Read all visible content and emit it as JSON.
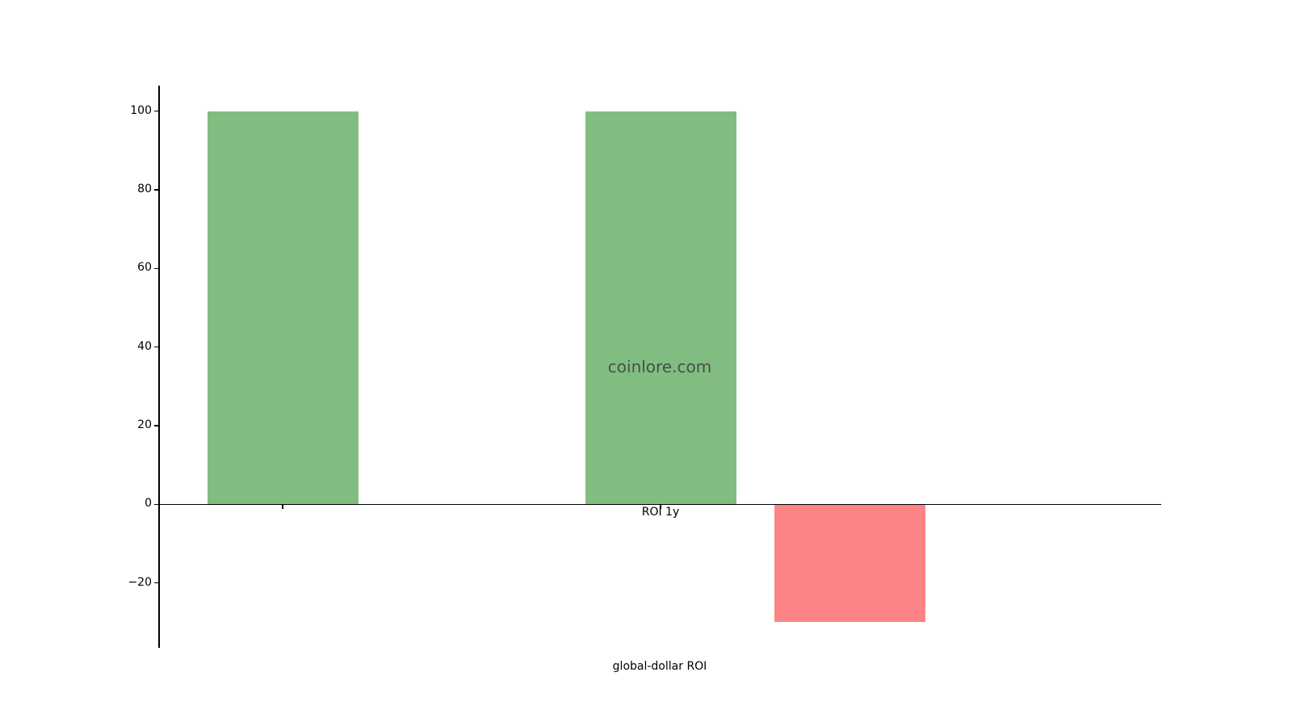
{
  "chart_data": {
    "type": "bar",
    "title": "",
    "xlabel": "global-dollar ROI",
    "ylabel": "",
    "watermark": "coinlore.com",
    "ylim": [
      -36.5,
      106.5
    ],
    "grid": false,
    "num_slots": 4,
    "bars": [
      {
        "slot": 0,
        "value": 100,
        "color": "#81bd81"
      },
      {
        "slot": 2,
        "value": 100,
        "color": "#81bd81"
      },
      {
        "slot": 3,
        "value": -30,
        "color": "#fc8484"
      }
    ],
    "xticks": [
      {
        "slot": 0,
        "label": ""
      },
      {
        "slot": 2,
        "label": "ROI 1y"
      }
    ],
    "yticks": [
      {
        "value": 100,
        "label": "100"
      },
      {
        "value": 80,
        "label": "80"
      },
      {
        "value": 60,
        "label": "60"
      },
      {
        "value": 40,
        "label": "40"
      },
      {
        "value": 20,
        "label": "20"
      },
      {
        "value": 0,
        "label": "0"
      },
      {
        "value": -20,
        "label": "−20"
      }
    ],
    "colors": {
      "positive_bar": "#81bd81",
      "negative_bar": "#fc8484",
      "axis": "#000000",
      "watermark": "#454545"
    }
  }
}
